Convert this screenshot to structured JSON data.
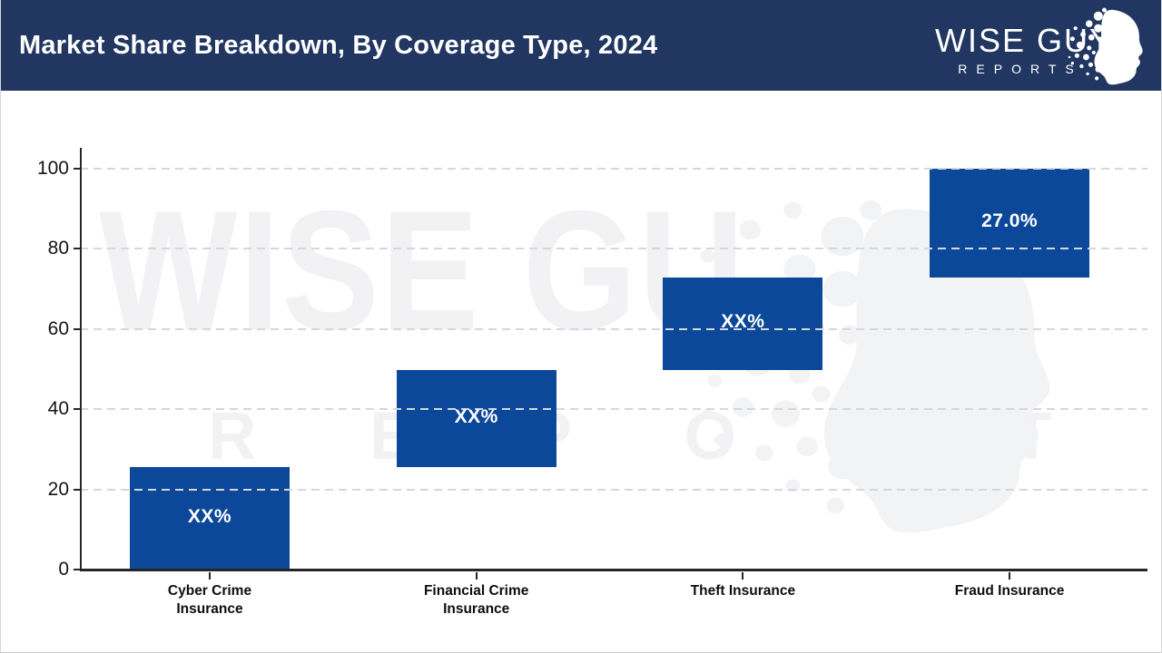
{
  "header": {
    "title": "Market Share Breakdown, By Coverage Type, 2024",
    "bg_color": "#213761",
    "logo": {
      "line1": "WISE GUY",
      "line2": "REPORTS"
    }
  },
  "watermark": {
    "line1": "WISE GU",
    "line2": "R E P O R T S"
  },
  "chart_data": {
    "type": "bar",
    "subtype": "floating-waterfall",
    "title": "Market Share Breakdown, By Coverage Type, 2024",
    "categories": [
      "Cyber Crime Insurance",
      "Financial Crime Insurance",
      "Theft Insurance",
      "Fraud Insurance"
    ],
    "segments": [
      {
        "category": "Cyber Crime Insurance",
        "label_lines": [
          "Cyber Crime",
          "Insurance"
        ],
        "start": 0,
        "end": 25.5,
        "label": "XX%"
      },
      {
        "category": "Financial Crime Insurance",
        "label_lines": [
          "Financial Crime",
          "Insurance"
        ],
        "start": 25.5,
        "end": 49.7,
        "label": "XX%"
      },
      {
        "category": "Theft Insurance",
        "label_lines": [
          "Theft Insurance"
        ],
        "start": 49.7,
        "end": 72.8,
        "label": "XX%"
      },
      {
        "category": "Fraud Insurance",
        "label_lines": [
          "Fraud Insurance"
        ],
        "start": 72.8,
        "end": 99.8,
        "label": "27.0%",
        "value": 27.0
      }
    ],
    "y_ticks": [
      0,
      20,
      40,
      60,
      80,
      100
    ],
    "ylim": [
      0,
      105
    ],
    "xlabel": "",
    "ylabel": "",
    "bar_color": "#0b4899",
    "grid": "horizontal-dashed",
    "gridline_color": "#d4d7db",
    "legend": "none"
  }
}
